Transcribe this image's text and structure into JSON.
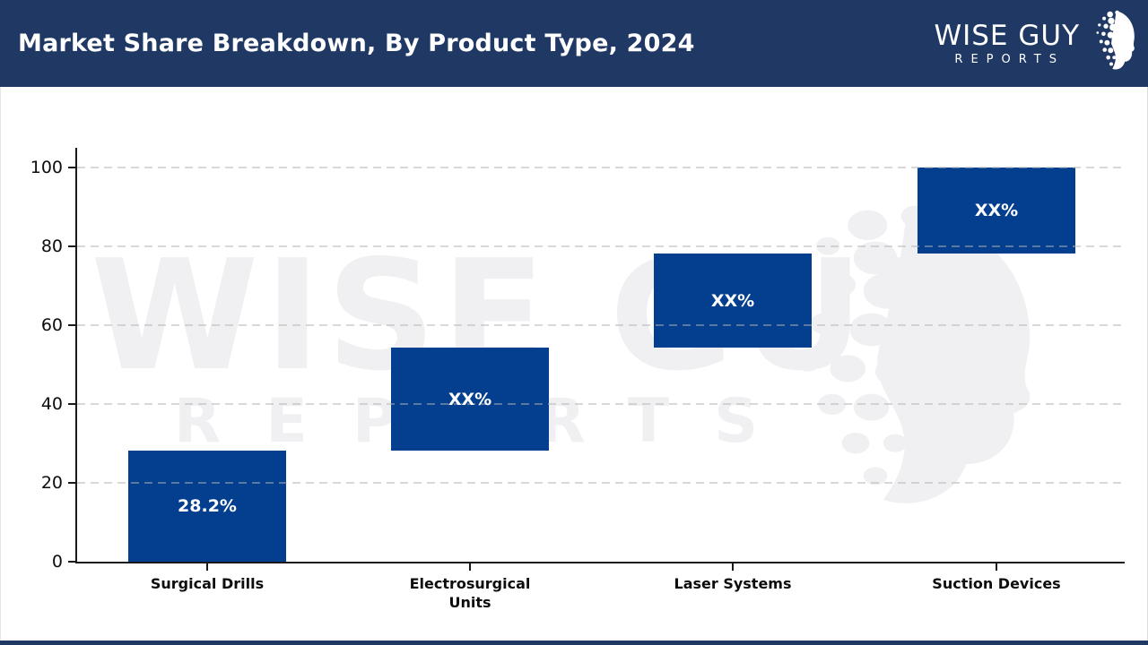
{
  "header": {
    "title": "Market Share Breakdown, By Product Type, 2024",
    "logo": {
      "wordmark": "WISE GUY",
      "subtext": "REPORTS"
    }
  },
  "watermark": {
    "wordmark": "WISE GUY",
    "subtext": "REPORTS"
  },
  "colors": {
    "header_bg": "#203864",
    "footer_bg": "#203864",
    "bar_fill": "#043f8f",
    "bar_label": "#ffffff",
    "axis": "#1a1a1a",
    "grid": "#c8c8c8",
    "watermark": "#f0f0f2",
    "page_bg": "#ffffff"
  },
  "chart_data": {
    "type": "bar",
    "variant": "waterfall",
    "title": "Market Share Breakdown, By Product Type, 2024",
    "categories": [
      "Surgical Drills",
      "Electrosurgical Units",
      "Laser Systems",
      "Suction Devices"
    ],
    "segments": [
      {
        "category": "Surgical Drills",
        "start": 0,
        "end": 28.2,
        "label": "28.2%"
      },
      {
        "category": "Electrosurgical Units",
        "start": 28.2,
        "end": 54.3,
        "label": "XX%"
      },
      {
        "category": "Laser Systems",
        "start": 54.3,
        "end": 78.2,
        "label": "XX%"
      },
      {
        "category": "Suction Devices",
        "start": 78.2,
        "end": 100,
        "label": "XX%"
      }
    ],
    "xlabel": "",
    "ylabel": "",
    "ylim": [
      0,
      100
    ],
    "yticks": [
      0,
      20,
      40,
      60,
      80,
      100
    ],
    "grid": {
      "axis": "y",
      "style": "dashed",
      "drawn_above_bars": true
    },
    "legend": null,
    "bar_color": "#043f8f",
    "value_label_color": "#ffffff"
  }
}
